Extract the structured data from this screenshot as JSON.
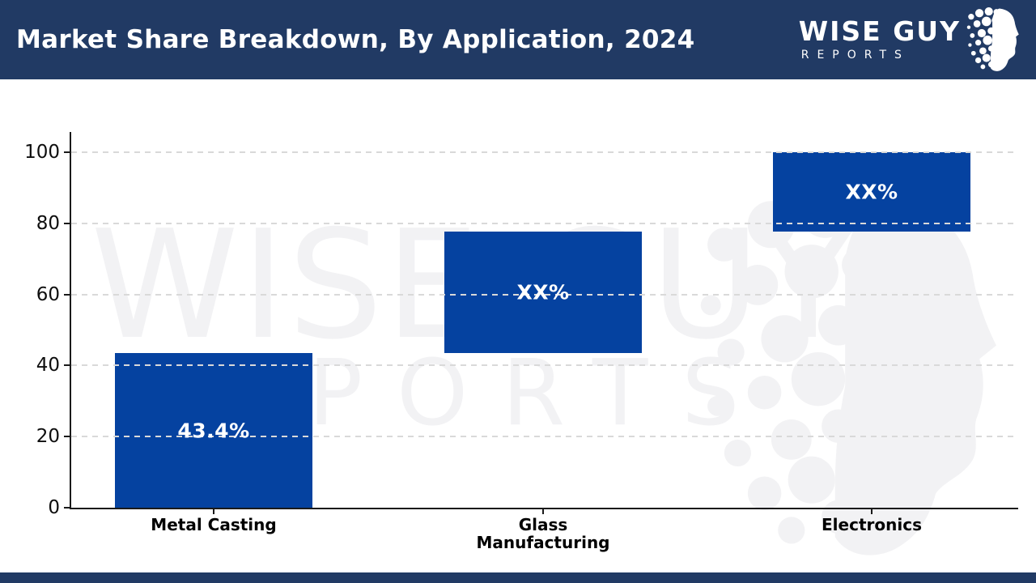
{
  "header": {
    "title": "Market Share Breakdown, By Application, 2024",
    "logo": {
      "line1": "WISE GUY",
      "line2": "REPORTS"
    }
  },
  "watermark": {
    "line1": "WISE GUY",
    "line2": "REPORTS"
  },
  "colors": {
    "header_navy": "#213A64",
    "bar_blue": "#0542A0",
    "gridline_gray": "#D9D9D9",
    "axis_dark": "#1A1A1A",
    "watermark_gray": "#F2F2F4",
    "bar_label_white": "#FFFFFF"
  },
  "chart_data": {
    "type": "bar",
    "subtype": "stacked-waterfall",
    "title": "Market Share Breakdown, By Application, 2024",
    "categories": [
      "Metal Casting",
      "Glass\nManufacturing",
      "Electronics"
    ],
    "bars": [
      {
        "category": "Metal Casting",
        "start": 0,
        "end": 43.4,
        "label": "43.4%"
      },
      {
        "category": "Glass\nManufacturing",
        "start": 43.4,
        "end": 77.6,
        "label": "XX%"
      },
      {
        "category": "Electronics",
        "start": 77.6,
        "end": 100,
        "label": "XX%"
      }
    ],
    "xlabel": "",
    "ylabel": "",
    "ylim": [
      0,
      100
    ],
    "yticks": [
      0,
      20,
      40,
      60,
      80,
      100
    ],
    "grid": "horizontal-dashed",
    "legend": "none",
    "bar_color": "#0542A0"
  }
}
